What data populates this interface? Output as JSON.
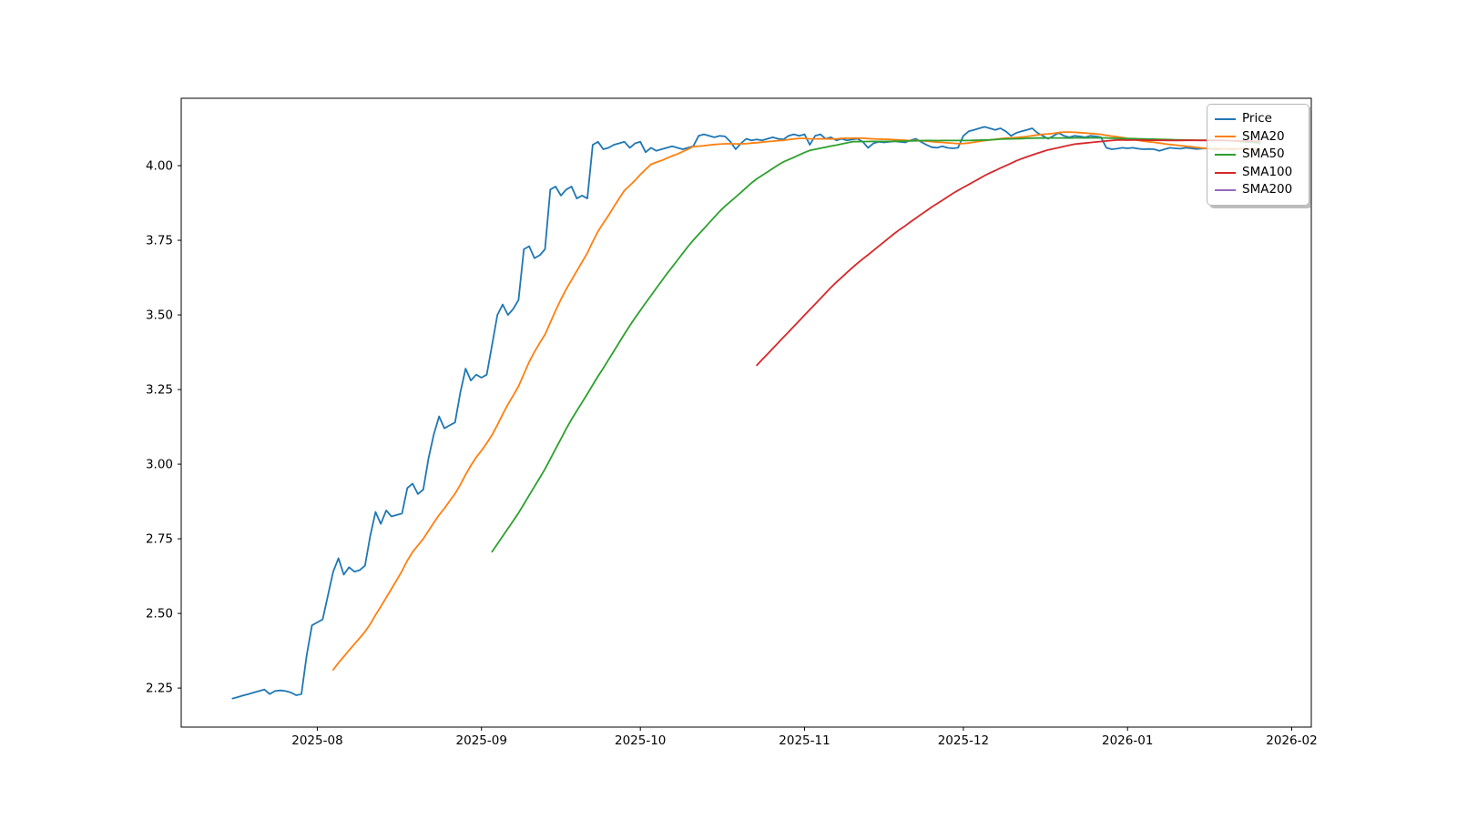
{
  "figure": {
    "background_color": "#ffffff",
    "spine_color": "#000000",
    "tick_color": "#000000",
    "legend": {
      "position": "upper right",
      "entries": [
        "Price",
        "SMA20",
        "SMA50",
        "SMA100",
        "SMA200"
      ]
    }
  },
  "chart_data": {
    "type": "line",
    "title": "",
    "xlabel": "",
    "ylabel": "",
    "grid": false,
    "x_axis": {
      "kind": "date",
      "start_date": "2025-07-16",
      "frequency_days": 1,
      "tick_labels": [
        "2025-08",
        "2025-09",
        "2025-10",
        "2025-11",
        "2025-12",
        "2026-01",
        "2026-02"
      ]
    },
    "y_axis": {
      "tick_labels": [
        "2.25",
        "2.50",
        "2.75",
        "3.00",
        "3.25",
        "3.50",
        "3.75",
        "4.00"
      ],
      "approx_limits": [
        2.12,
        4.23
      ]
    },
    "series": [
      {
        "name": "Price",
        "color": "#1f77b4",
        "kind": "raw",
        "visible": true,
        "values": [
          2.215,
          2.22,
          2.225,
          2.23,
          2.235,
          2.24,
          2.245,
          2.23,
          2.24,
          2.242,
          2.24,
          2.235,
          2.226,
          2.23,
          2.36,
          2.46,
          2.47,
          2.48,
          2.56,
          2.64,
          2.685,
          2.63,
          2.655,
          2.64,
          2.645,
          2.66,
          2.76,
          2.84,
          2.8,
          2.845,
          2.825,
          2.83,
          2.835,
          2.92,
          2.935,
          2.9,
          2.915,
          3.02,
          3.1,
          3.16,
          3.12,
          3.13,
          3.14,
          3.24,
          3.32,
          3.28,
          3.3,
          3.29,
          3.3,
          3.4,
          3.5,
          3.535,
          3.5,
          3.52,
          3.55,
          3.72,
          3.73,
          3.69,
          3.7,
          3.72,
          3.92,
          3.93,
          3.9,
          3.92,
          3.93,
          3.89,
          3.9,
          3.89,
          4.07,
          4.08,
          4.055,
          4.06,
          4.07,
          4.075,
          4.08,
          4.06,
          4.075,
          4.08,
          4.045,
          4.06,
          4.05,
          4.055,
          4.06,
          4.065,
          4.06,
          4.055,
          4.06,
          4.065,
          4.1,
          4.105,
          4.1,
          4.095,
          4.1,
          4.098,
          4.08,
          4.055,
          4.075,
          4.09,
          4.085,
          4.088,
          4.085,
          4.09,
          4.095,
          4.09,
          4.088,
          4.1,
          4.105,
          4.1,
          4.105,
          4.07,
          4.1,
          4.105,
          4.09,
          4.095,
          4.085,
          4.09,
          4.085,
          4.088,
          4.09,
          4.08,
          4.06,
          4.075,
          4.08,
          4.078,
          4.08,
          4.082,
          4.08,
          4.078,
          4.085,
          4.09,
          4.08,
          4.07,
          4.062,
          4.06,
          4.065,
          4.06,
          4.058,
          4.06,
          4.1,
          4.115,
          4.12,
          4.125,
          4.13,
          4.125,
          4.12,
          4.125,
          4.115,
          4.1,
          4.11,
          4.115,
          4.12,
          4.125,
          4.11,
          4.1,
          4.09,
          4.1,
          4.11,
          4.1,
          4.095,
          4.1,
          4.098,
          4.095,
          4.1,
          4.098,
          4.095,
          4.06,
          4.055,
          4.057,
          4.06,
          4.058,
          4.06,
          4.057,
          4.055,
          4.056,
          4.055,
          4.05,
          4.055,
          4.06,
          4.058,
          4.057,
          4.06,
          4.058,
          4.056,
          4.057,
          4.058,
          4.056,
          4.055,
          4.057,
          4.056,
          4.055,
          4.056,
          4.057,
          4.055,
          4.056,
          4.055
        ]
      },
      {
        "name": "SMA20",
        "color": "#ff7f0e",
        "kind": "sma",
        "window": 20,
        "derived_from": "Price",
        "visible": true,
        "first_point": {
          "date": "2025-08-04",
          "value": 2.3
        }
      },
      {
        "name": "SMA50",
        "color": "#2ca02c",
        "kind": "sma",
        "window": 50,
        "derived_from": "Price",
        "visible": true,
        "first_point": {
          "date": "2025-09-03",
          "value": 2.7
        }
      },
      {
        "name": "SMA100",
        "color": "#d62728",
        "kind": "sma",
        "window": 100,
        "derived_from": "Price",
        "visible": true,
        "first_point": {
          "date": "2025-10-23",
          "value": 3.33
        }
      },
      {
        "name": "SMA200",
        "color": "#9467bd",
        "kind": "sma",
        "window": 200,
        "derived_from": "Price",
        "visible": false
      }
    ]
  }
}
